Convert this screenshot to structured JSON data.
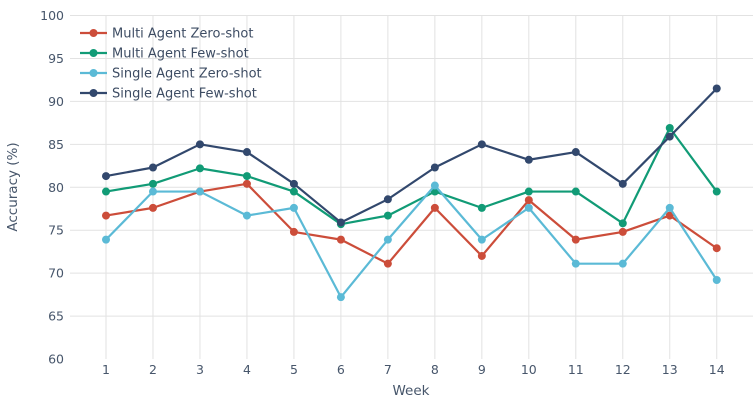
{
  "chart_data": {
    "type": "line",
    "title": "",
    "xlabel": "Week",
    "ylabel": "Accuracy (%)",
    "x": [
      1,
      2,
      3,
      4,
      5,
      6,
      7,
      8,
      9,
      10,
      11,
      12,
      13,
      14
    ],
    "x_tick_labels": [
      "1",
      "2",
      "3",
      "4",
      "5",
      "6",
      "7",
      "8",
      "9",
      "10",
      "11",
      "12",
      "13",
      "14"
    ],
    "y_ticks": [
      60,
      65,
      70,
      75,
      80,
      85,
      90,
      95,
      100
    ],
    "y_tick_labels": [
      "60",
      "65",
      "70",
      "75",
      "80",
      "85",
      "90",
      "95",
      "100"
    ],
    "xlim": [
      1,
      14
    ],
    "ylim": [
      60,
      100
    ],
    "grid": true,
    "legend_position": "top-left",
    "series": [
      {
        "name": "Multi Agent Zero-shot",
        "color": "#cc4d3a",
        "values": [
          76.7,
          77.6,
          79.5,
          80.4,
          74.8,
          73.9,
          71.1,
          77.6,
          72.0,
          78.5,
          73.9,
          74.8,
          76.7,
          72.9
        ]
      },
      {
        "name": "Multi Agent Few-shot",
        "color": "#119b76",
        "values": [
          79.5,
          80.4,
          82.2,
          81.3,
          79.5,
          75.7,
          76.7,
          79.5,
          77.6,
          79.5,
          79.5,
          75.8,
          86.9,
          79.5
        ]
      },
      {
        "name": "Single Agent Zero-shot",
        "color": "#5bbad6",
        "values": [
          73.9,
          79.5,
          79.5,
          76.7,
          77.6,
          67.2,
          73.9,
          80.2,
          73.9,
          77.6,
          71.1,
          71.1,
          77.6,
          69.2
        ]
      },
      {
        "name": "Single Agent Few-shot",
        "color": "#32486d",
        "values": [
          81.3,
          82.3,
          85.0,
          84.1,
          80.4,
          75.9,
          78.6,
          82.3,
          85.0,
          83.2,
          84.1,
          80.4,
          85.9,
          91.5
        ]
      }
    ],
    "text_color": "#47566b",
    "grid_color": "#e2e2e2"
  }
}
